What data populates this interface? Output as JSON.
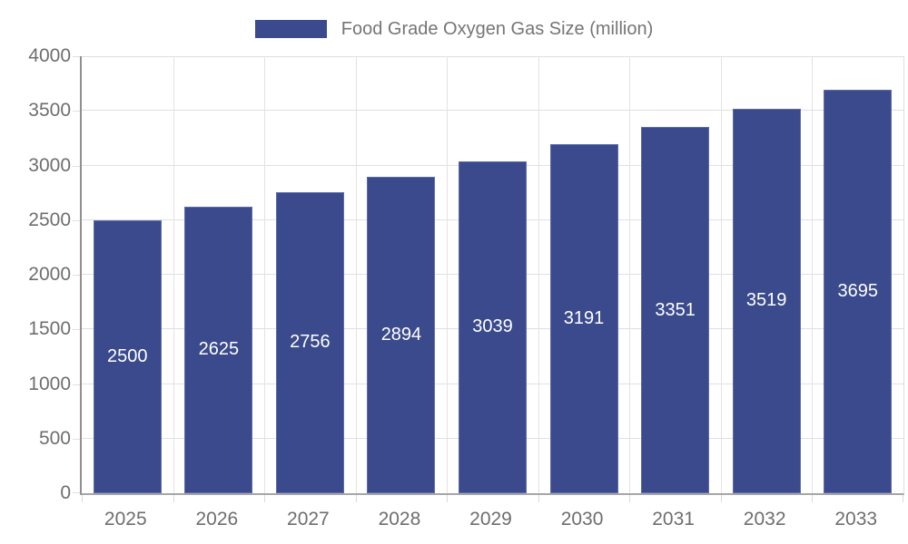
{
  "legend": {
    "label": "Food Grade Oxygen Gas Size (million)",
    "swatch_color": "#3A4A8C"
  },
  "colors": {
    "bar_fill": "#3A4A8C",
    "bar_edge": "#5E6CA8",
    "value_text": "#FFFFFF",
    "grid_line": "#E0E0E0",
    "y_axis_line": "#8F8F8F",
    "x_axis_line": "#A6A6A6",
    "tick_mark": "#D9D9D9",
    "axis_text": "#6E6E6E",
    "legend_text": "#757575",
    "background": "#FFFFFF"
  },
  "chart_data": {
    "type": "bar",
    "title": "Food Grade Oxygen Gas Size (million)",
    "series_name": "Food Grade Oxygen Gas Size (million)",
    "categories": [
      "2025",
      "2026",
      "2027",
      "2028",
      "2029",
      "2030",
      "2031",
      "2032",
      "2033"
    ],
    "values": [
      2500,
      2625,
      2756,
      2894,
      3039,
      3191,
      3351,
      3519,
      3695
    ],
    "xlabel": "",
    "ylabel": "",
    "ylim": [
      0,
      4000
    ],
    "ytick_interval": 500,
    "yticks": [
      0,
      500,
      1000,
      1500,
      2000,
      2500,
      3000,
      3500,
      4000
    ],
    "grid": true,
    "plot_border": true,
    "legend_position": "top-center",
    "value_label_position": "inside-center"
  }
}
